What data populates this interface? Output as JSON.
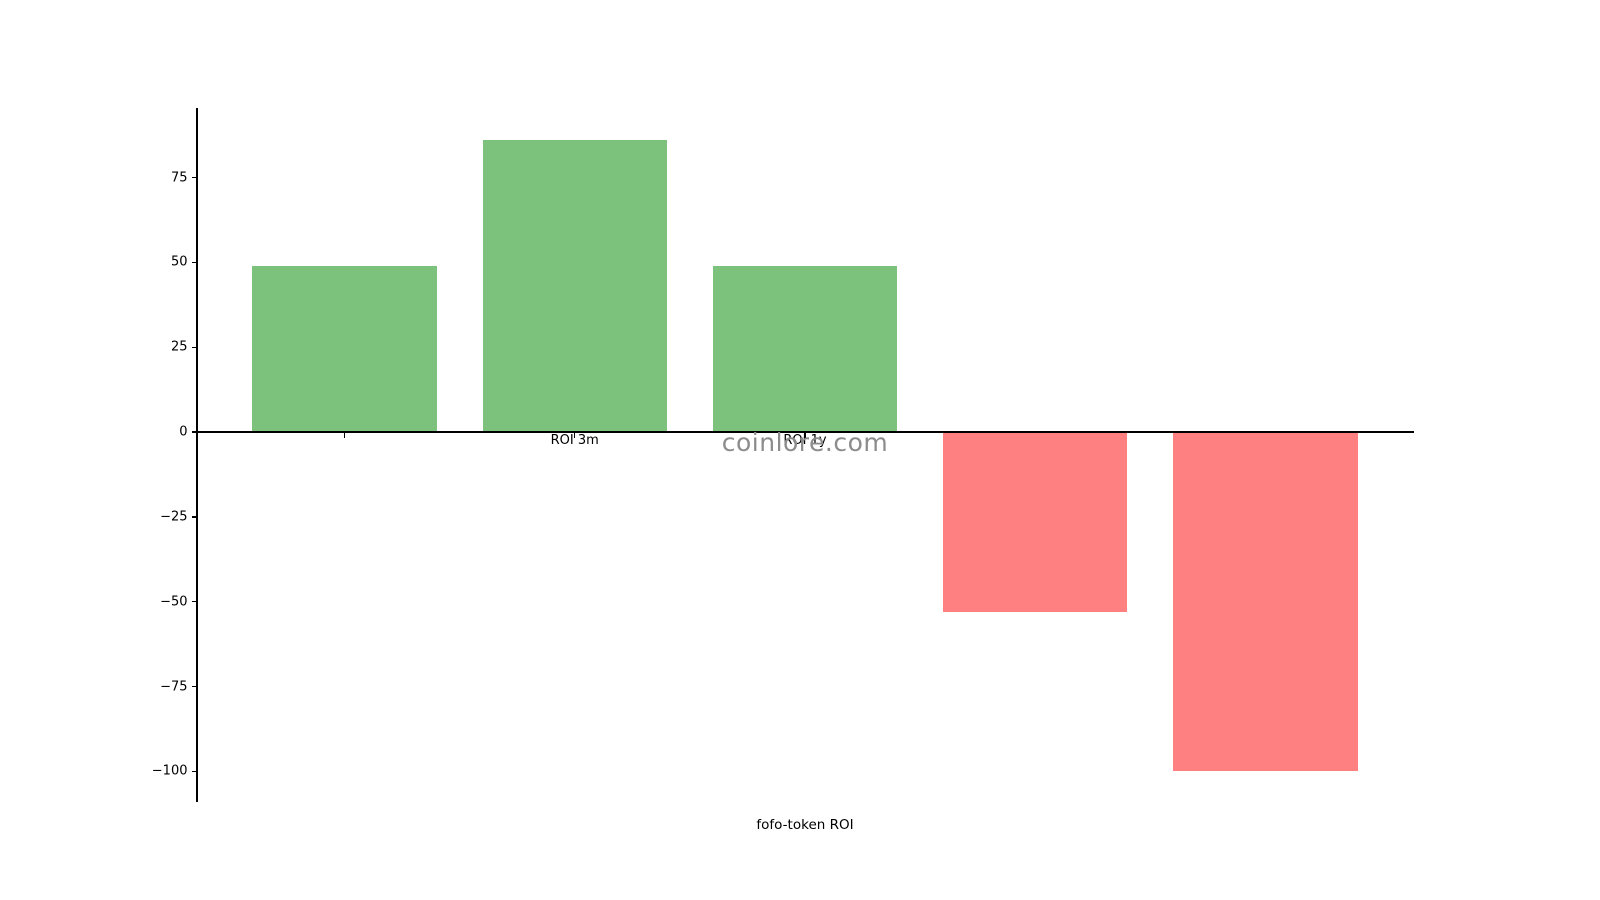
{
  "chart_data": {
    "type": "bar",
    "title": "",
    "xlabel": "fofo-token ROI",
    "ylabel": "",
    "watermark": "coinlore.com",
    "categories": [
      "",
      "ROI 3m",
      "ROI 1y",
      "",
      ""
    ],
    "values": [
      49,
      86,
      49,
      -53,
      -100
    ],
    "y_ticks": [
      75,
      50,
      25,
      0,
      -25,
      -50,
      -75,
      -100
    ],
    "ylim": [
      -109,
      95.5
    ],
    "grid": false,
    "legend": "none",
    "colors": {
      "positive": "#7cc17c",
      "negative": "#ff8080",
      "axis": "#000000",
      "tick_label": "#000000",
      "watermark": "#8c8c8c",
      "background": "#ffffff"
    }
  }
}
